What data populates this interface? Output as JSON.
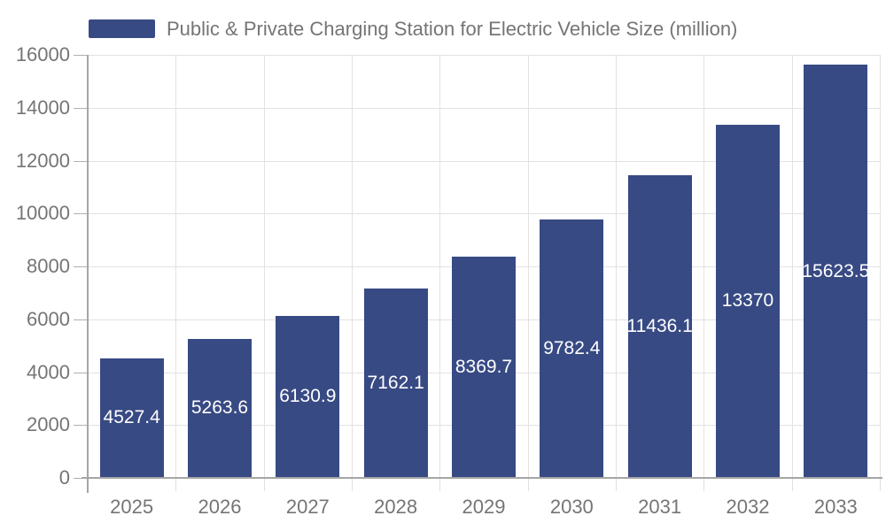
{
  "page": {
    "background": "#ffffff"
  },
  "legend": {
    "label": "Public & Private Charging Station for Electric Vehicle Size (million)",
    "swatch_color": "#384A84"
  },
  "chart_data": {
    "type": "bar",
    "title": "Public & Private Charging Station for Electric Vehicle Size (million)",
    "categories": [
      "2025",
      "2026",
      "2027",
      "2028",
      "2029",
      "2030",
      "2031",
      "2032",
      "2033"
    ],
    "values": [
      4527.4,
      5263.6,
      6130.9,
      7162.1,
      8369.7,
      9782.4,
      11436.1,
      13370,
      15623.5
    ],
    "value_labels": [
      "4527.4",
      "5263.6",
      "6130.9",
      "7162.1",
      "8369.7",
      "9782.4",
      "11436.1",
      "13370",
      "15623.5"
    ],
    "xlabel": "",
    "ylabel": "",
    "ylim": [
      0,
      16000
    ],
    "yticks": [
      0,
      2000,
      4000,
      6000,
      8000,
      10000,
      12000,
      14000,
      16000
    ],
    "grid": true,
    "legend_position": "top-left",
    "bar_color": "#384A84",
    "bar_label_color": "#ffffff",
    "axis_label_color": "#757575",
    "grid_color": "#e2e2e2",
    "axis_line_color": "#a6a6a6"
  }
}
